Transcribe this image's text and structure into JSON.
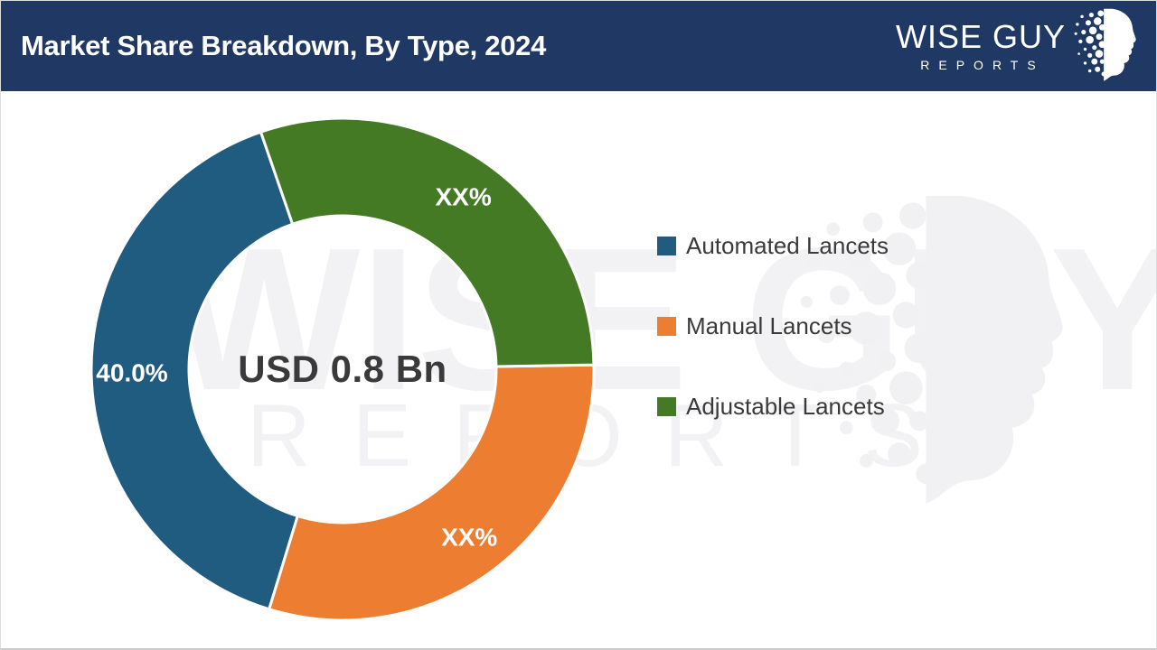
{
  "header": {
    "title": "Market Share Breakdown, By Type, 2024",
    "logo": {
      "wordmark": "WISE GUY",
      "subtext": "REPORTS"
    }
  },
  "watermark": {
    "line1": "WISE GUY",
    "line2": "REPORTS"
  },
  "colors": {
    "header_background": "#1F3864",
    "title_text": "#FFFFFF",
    "legend_text": "#3A3A3A",
    "center_text": "#3A3A3A",
    "slice_label_text": "#FFFFFF",
    "automated_blue": "#205B80",
    "manual_orange": "#ED7D31",
    "adjustable_green": "#447A24"
  },
  "chart_data": {
    "type": "pie",
    "subtype": "donut",
    "title": "Market Share Breakdown, By Type, 2024",
    "center_label": "USD 0.8 Bn",
    "start_angle_deg": 109,
    "direction": "counterclockwise",
    "legend_position": "right",
    "segments": [
      {
        "name": "Automated Lancets",
        "value_pct": 40.0,
        "label": "40.0%",
        "color": "#205B80"
      },
      {
        "name": "Manual Lancets",
        "value_pct": 30.0,
        "label": "XX%",
        "color": "#ED7D31"
      },
      {
        "name": "Adjustable Lancets",
        "value_pct": 30.0,
        "label": "XX%",
        "color": "#447A24"
      }
    ],
    "legend": [
      "Automated Lancets",
      "Manual Lancets",
      "Adjustable Lancets"
    ]
  }
}
